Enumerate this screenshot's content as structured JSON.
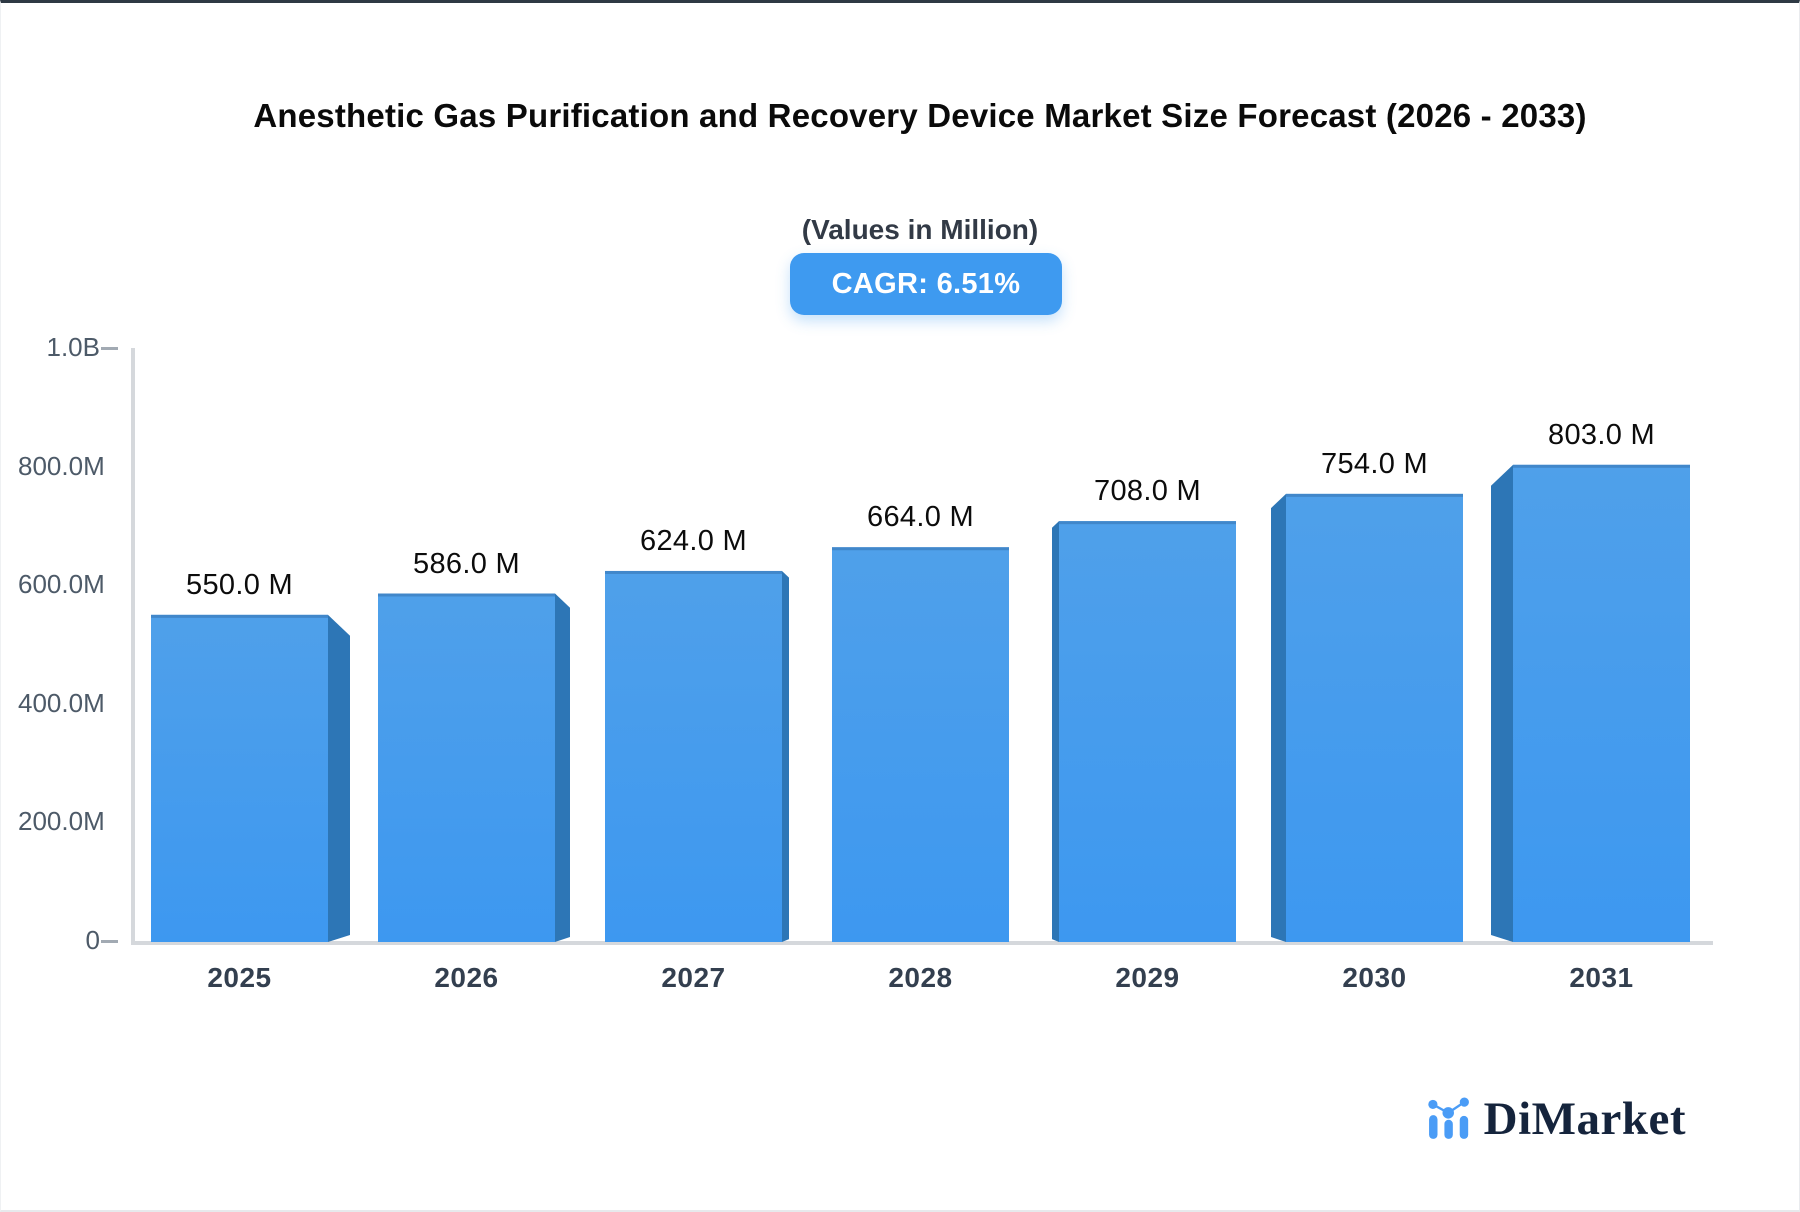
{
  "header": {
    "title": "Anesthetic Gas Purification and Recovery Device Market Size Forecast (2026 - 2033)",
    "subtitle": "(Values in Million)",
    "cagr_label": "CAGR: 6.51%"
  },
  "chart_data": {
    "type": "bar",
    "title": "Anesthetic Gas Purification and Recovery Device Market Size Forecast (2026 - 2033)",
    "subtitle": "(Values in Million)",
    "cagr_percent": 6.51,
    "categories": [
      "2025",
      "2026",
      "2027",
      "2028",
      "2029",
      "2030",
      "2031"
    ],
    "values": [
      550,
      586,
      624,
      664,
      708,
      754,
      803
    ],
    "value_labels": [
      "550.0 M",
      "586.0 M",
      "624.0 M",
      "664.0 M",
      "708.0 M",
      "754.0 M",
      "803.0 M"
    ],
    "ylabel": "",
    "xlabel": "",
    "ylim": [
      0,
      1000
    ],
    "y_ticks": [
      {
        "value": 0,
        "label": "0"
      },
      {
        "value": 200,
        "label": "200.0M"
      },
      {
        "value": 400,
        "label": "400.0M"
      },
      {
        "value": 600,
        "label": "600.0M"
      },
      {
        "value": 800,
        "label": "800.0M"
      },
      {
        "value": 1000,
        "label": "1.0B"
      }
    ],
    "grid": false,
    "legend": null,
    "bar_color_top": "#4fa0ea",
    "bar_color_bottom": "#3d98f0",
    "bar_top_edge_color": "#4187ca",
    "bar_side_color": "#2d76b6",
    "axis_line_color": "#d5d8dc"
  },
  "footer": {
    "logo_text": "DiMarket",
    "logo_icon": "bar-chart-logo-icon",
    "logo_icon_color": "#4a9cf6"
  }
}
